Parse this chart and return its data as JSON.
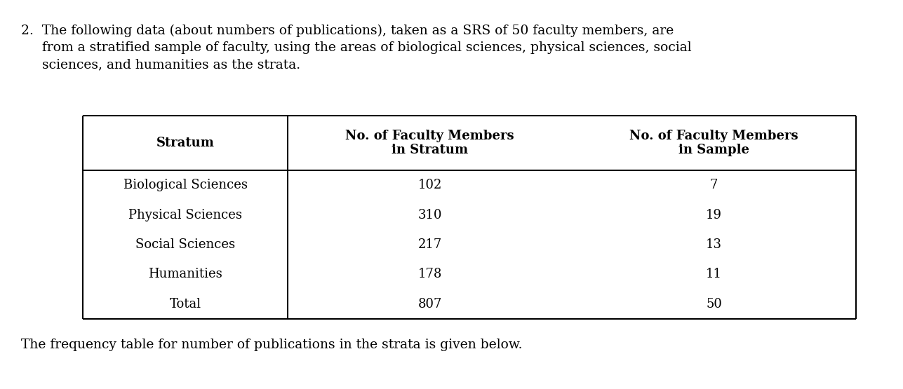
{
  "intro_line1": "2.  The following data (about numbers of publications), taken as a SRS of 50 faculty members, are",
  "intro_line2": "     from a stratified sample of faculty, using the areas of biological sciences, physical sciences, social",
  "intro_line3": "     sciences, and humanities as the strata.",
  "footer_text": "The frequency table for number of publications in the strata is given below.",
  "col_headers_line1": [
    "Stratum",
    "No. of Faculty Members",
    "No. of Faculty Members"
  ],
  "col_headers_line2": [
    "",
    "in Stratum",
    "in Sample"
  ],
  "rows": [
    [
      "Biological Sciences",
      "102",
      "7"
    ],
    [
      "Physical Sciences",
      "310",
      "19"
    ],
    [
      "Social Sciences",
      "217",
      "13"
    ],
    [
      "Humanities",
      "178",
      "11"
    ],
    [
      "Total",
      "807",
      "50"
    ]
  ],
  "background_color": "#ffffff",
  "text_color": "#000000",
  "font_size_body": 13.5,
  "font_size_table": 13.0,
  "font_family": "DejaVu Serif"
}
